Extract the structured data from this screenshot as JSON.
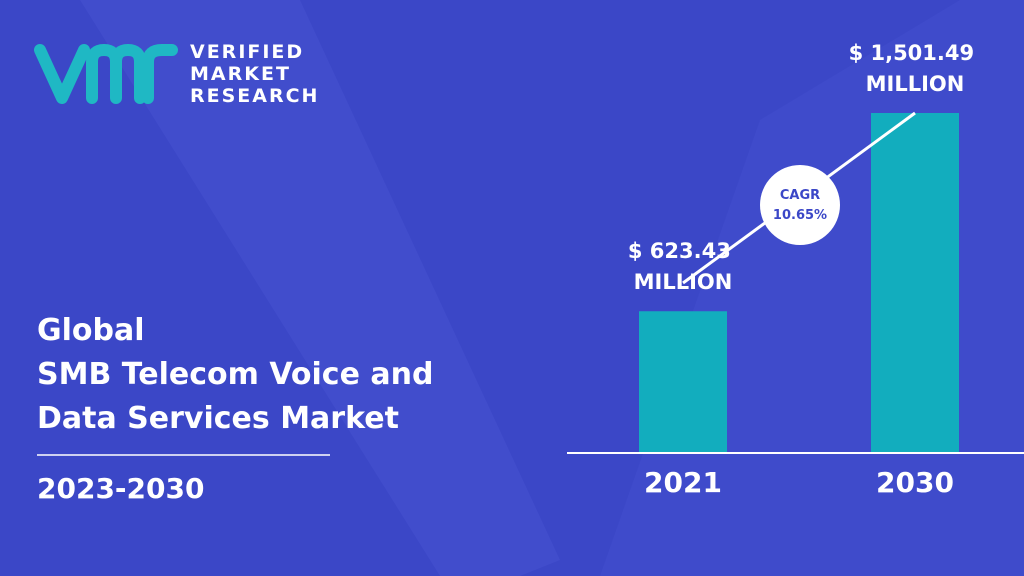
{
  "logo": {
    "lines": [
      "VERIFIED",
      "MARKET",
      "RESEARCH"
    ]
  },
  "chart_data": {
    "type": "bar",
    "title": [
      "Global",
      "SMB Telecom Voice and",
      "Data Services Market"
    ],
    "subtitle": "2023-2030",
    "categories": [
      "2021",
      "2030"
    ],
    "values": [
      623.43,
      1501.49
    ],
    "value_labels": [
      "$ 623.43 MILLION",
      "$ 1,501.49 MILLION"
    ],
    "color": "#12adbe",
    "annotation": {
      "label": "CAGR",
      "value": "10.65%"
    }
  }
}
